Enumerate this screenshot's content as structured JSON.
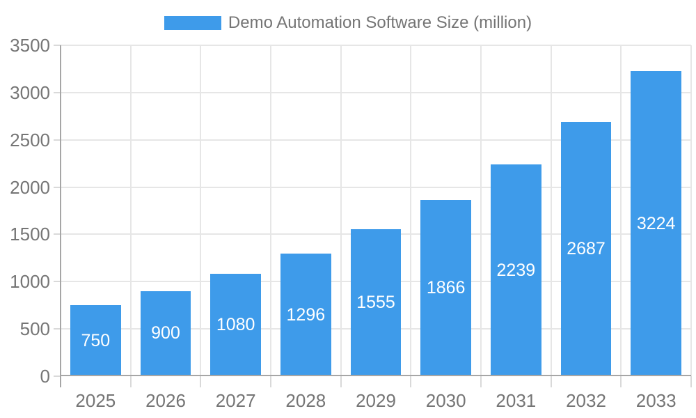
{
  "chart_data": {
    "type": "bar",
    "title": "Demo Automation Software Size (million)",
    "categories": [
      "2025",
      "2026",
      "2027",
      "2028",
      "2029",
      "2030",
      "2031",
      "2032",
      "2033"
    ],
    "values": [
      750,
      900,
      1080,
      1296,
      1555,
      1866,
      2239,
      2687,
      3224
    ],
    "bar_value_labels": [
      "750",
      "900",
      "1080",
      "1296",
      "1555",
      "1866",
      "2239",
      "2687",
      "3224"
    ],
    "xlabel": "",
    "ylabel": "",
    "ylim": [
      0,
      3500
    ],
    "ytick_step": 500,
    "ytick_labels": [
      "0",
      "500",
      "1000",
      "1500",
      "2000",
      "2500",
      "3000",
      "3500"
    ],
    "grid": true,
    "legend_position": "top-center",
    "colors": {
      "bar": "#3E9BEA",
      "axis_text": "#757575",
      "bar_label_text": "#FFFFFF",
      "gridline": "#E6E6E6",
      "axis_line": "#A6A6A6",
      "tick": "#D9D9D9",
      "background": "#FFFFFF"
    }
  }
}
